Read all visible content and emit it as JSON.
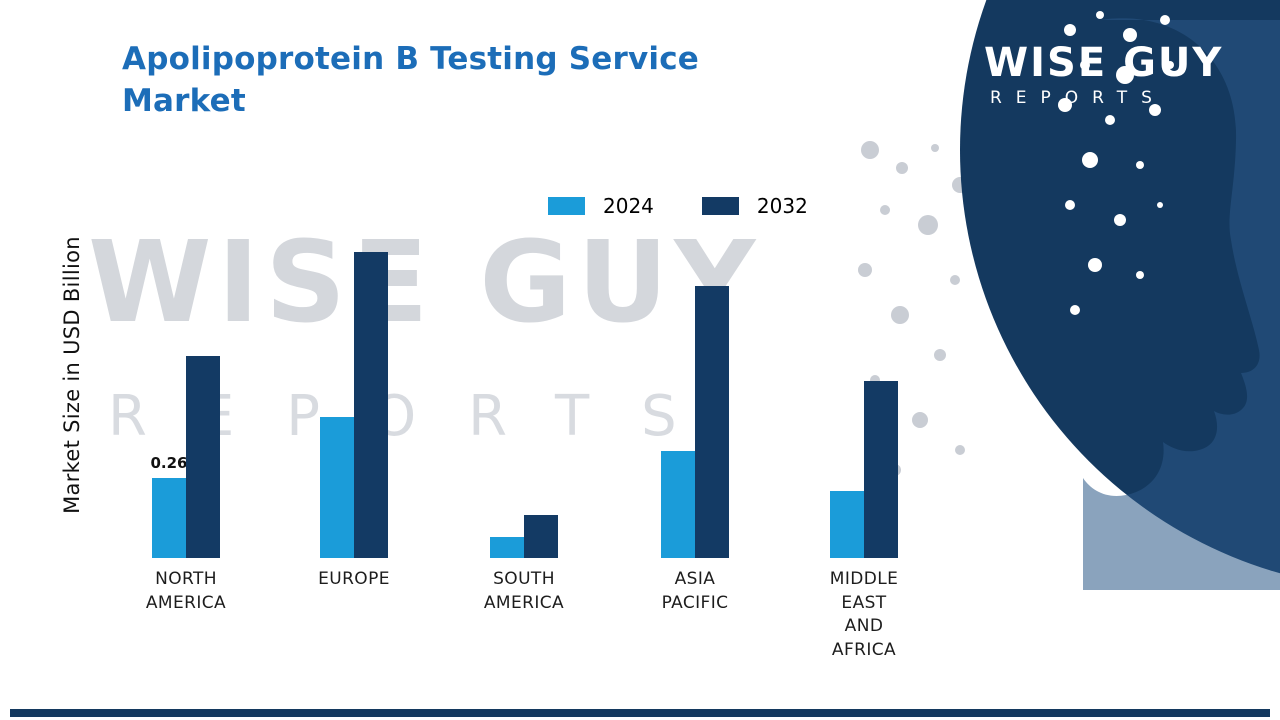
{
  "header": {
    "title": "Apolipoprotein B Testing Service Market"
  },
  "brand": {
    "line1": "WISE GUY",
    "line2": "REPORTS"
  },
  "watermark": {
    "line1": "WISE GUY",
    "line2": "REPORTS"
  },
  "colors": {
    "series_2024": "#1b9cd9",
    "series_2032": "#133a64",
    "title_blue": "#1c6db8",
    "navy": "#14395f",
    "watermark_gray": "#d4d7dc"
  },
  "chart_data": {
    "type": "bar",
    "title": "Apolipoprotein B Testing Service Market",
    "xlabel": "",
    "ylabel": "Market Size in USD Billion",
    "unit": "USD Billion",
    "categories": [
      "NORTH AMERICA",
      "EUROPE",
      "SOUTH AMERICA",
      "ASIA PACIFIC",
      "MIDDLE EAST AND AFRICA"
    ],
    "category_lines": [
      [
        "NORTH",
        "AMERICA"
      ],
      [
        "EUROPE"
      ],
      [
        "SOUTH",
        "AMERICA"
      ],
      [
        "ASIA",
        "PACIFIC"
      ],
      [
        "MIDDLE",
        "EAST",
        "AND",
        "AFRICA"
      ]
    ],
    "series": [
      {
        "name": "2024",
        "color": "#1b9cd9",
        "values": [
          0.26,
          0.46,
          0.07,
          0.35,
          0.22
        ],
        "labels": [
          "0.26",
          "",
          "",
          "",
          ""
        ]
      },
      {
        "name": "2032",
        "color": "#133a64",
        "values": [
          0.66,
          1.0,
          0.14,
          0.89,
          0.58
        ],
        "labels": [
          "",
          "",
          "",
          "",
          ""
        ]
      }
    ],
    "ylim": [
      0,
      1.1
    ],
    "grid": false,
    "legend_position": "top"
  }
}
